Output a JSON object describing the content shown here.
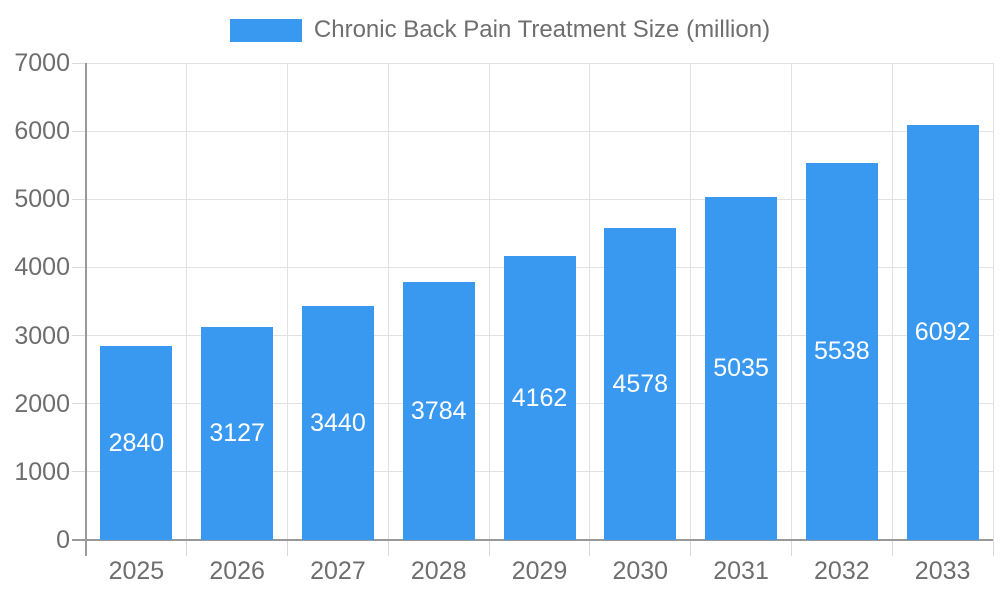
{
  "legend": {
    "label": "Chronic Back Pain Treatment Size (million)"
  },
  "chart_data": {
    "type": "bar",
    "title": "Chronic Back Pain Treatment Size (million)",
    "categories": [
      "2025",
      "2026",
      "2027",
      "2028",
      "2029",
      "2030",
      "2031",
      "2032",
      "2033"
    ],
    "values": [
      2840,
      3127,
      3440,
      3784,
      4162,
      4578,
      5035,
      5538,
      6092
    ],
    "xlabel": "",
    "ylabel": "",
    "ylim": [
      0,
      7000
    ],
    "yticks": [
      0,
      1000,
      2000,
      3000,
      4000,
      5000,
      6000,
      7000
    ],
    "grid": true,
    "legend_position": "top",
    "bar_color": "#3999f1",
    "bar_label_color": "#ffffff",
    "grid_color": "#e2e2e2",
    "tick_color": "#d9d9d9",
    "axis_line_color": "#999999",
    "axis_text_color": "#6e6e6e"
  }
}
